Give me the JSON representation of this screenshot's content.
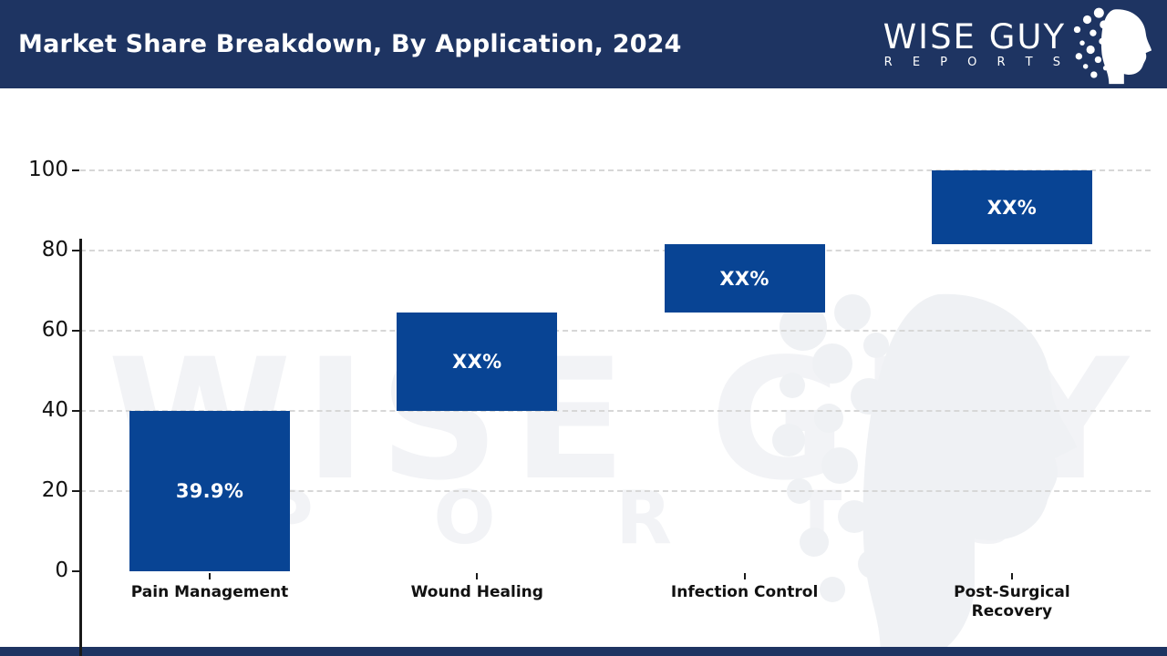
{
  "header": {
    "title": "Market Share Breakdown, By Application, 2024",
    "brand": {
      "line1": "WISE GUY",
      "line2": "R E P O R T S"
    }
  },
  "watermark": {
    "line1": "WISE GUY",
    "line2": "P O R T S"
  },
  "icons": {
    "brand_face": "dotted-head-profile-icon",
    "watermark_face": "dotted-head-profile-watermark"
  },
  "colors": {
    "header_bg": "#1e3462",
    "footer_bg": "#1e3462",
    "bar": "#084494",
    "bar_label": "#ffffff",
    "grid": "#d7d7d7",
    "axis": "#1a1a1a",
    "watermark": "#f2f3f6"
  },
  "chart_data": {
    "type": "bar",
    "subtype": "waterfall",
    "title": "Market Share Breakdown, By Application, 2024",
    "xlabel": "",
    "ylabel": "",
    "ylim": [
      0,
      100
    ],
    "yticks": [
      0,
      20,
      40,
      60,
      80,
      100
    ],
    "grid": "dashed-horizontal",
    "legend": "none",
    "categories": [
      "Pain Management",
      "Wound Healing",
      "Infection Control",
      "Post-Surgical Recovery"
    ],
    "segments": [
      {
        "category": "Pain Management",
        "start": 0,
        "end": 39.9,
        "label": "39.9%"
      },
      {
        "category": "Wound Healing",
        "start": 39.9,
        "end": 64.5,
        "label": "XX%"
      },
      {
        "category": "Infection Control",
        "start": 64.5,
        "end": 81.5,
        "label": "XX%"
      },
      {
        "category": "Post-Surgical Recovery",
        "start": 81.5,
        "end": 100,
        "label": "XX%"
      }
    ]
  }
}
